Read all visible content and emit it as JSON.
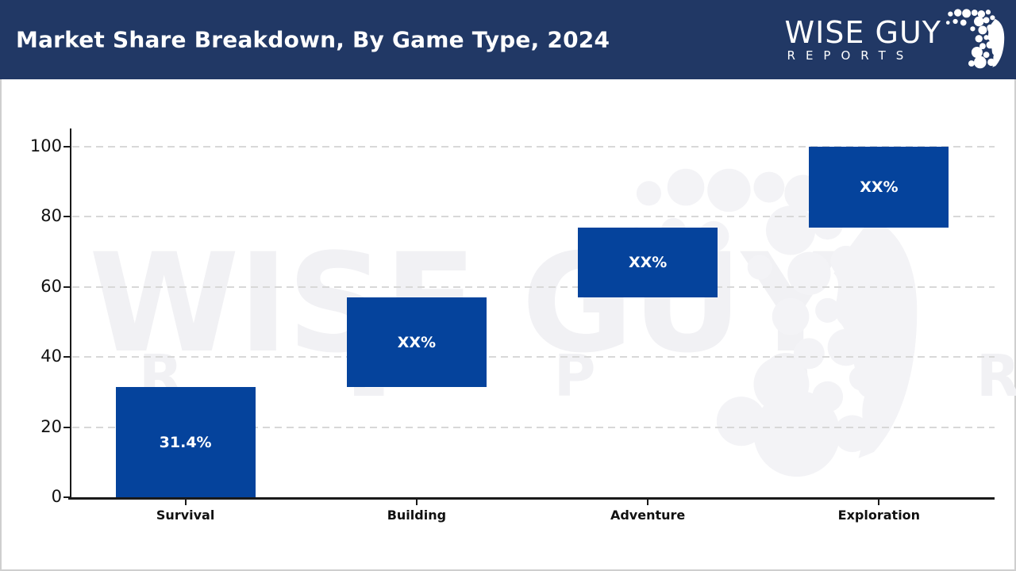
{
  "header": {
    "title": "Market Share Breakdown, By Game Type, 2024",
    "logo": {
      "line1": "WISE GUY",
      "line2": "REPORTS"
    }
  },
  "watermark": {
    "line1": "WISE GUY",
    "line2": "REPORTS"
  },
  "colors": {
    "header_bg": "#213865",
    "bar": "#05439C",
    "axis": "#1a1a1a",
    "grid": "#d8d8d8",
    "bar_label_text": "#ffffff",
    "watermark": "#f1f1f4"
  },
  "chart_data": {
    "type": "bar",
    "subtype": "waterfall",
    "title": "Market Share Breakdown, By Game Type, 2024",
    "categories": [
      "Survival",
      "Building",
      "Adventure",
      "Exploration"
    ],
    "segments": [
      {
        "category": "Survival",
        "start": 0,
        "end": 31.4,
        "label": "31.4%"
      },
      {
        "category": "Building",
        "start": 31.4,
        "end": 57,
        "label": "XX%"
      },
      {
        "category": "Adventure",
        "start": 57,
        "end": 77,
        "label": "XX%"
      },
      {
        "category": "Exploration",
        "start": 77,
        "end": 100,
        "label": "XX%"
      }
    ],
    "xlabel": "",
    "ylabel": "",
    "ylim": [
      0,
      100
    ],
    "yticks": [
      0,
      20,
      40,
      60,
      80,
      100
    ],
    "grid": "horizontal-dashed",
    "legend": "none",
    "bar_color": "#05439C"
  }
}
